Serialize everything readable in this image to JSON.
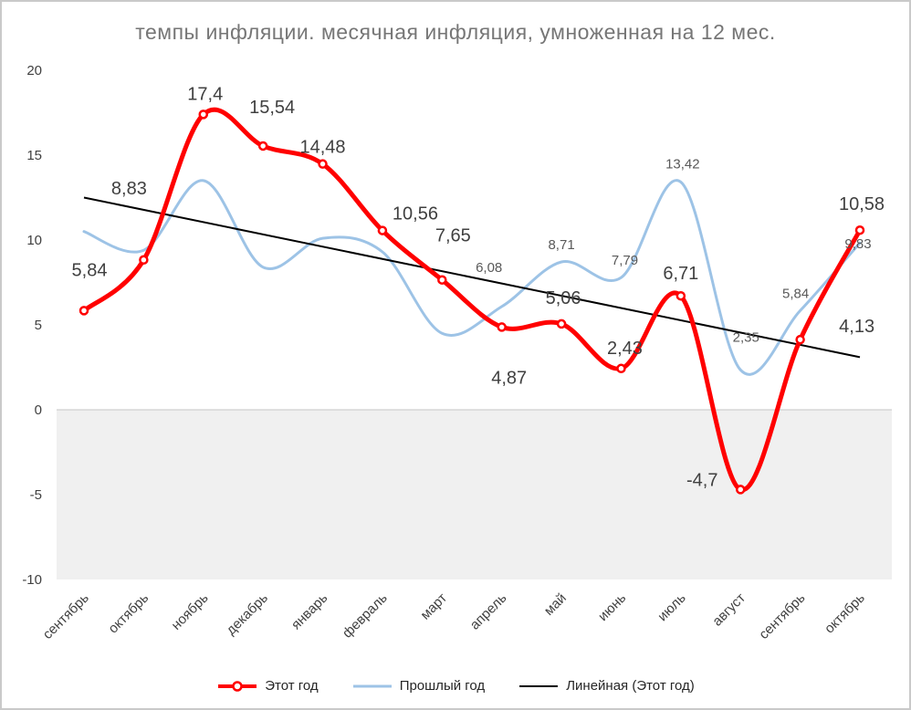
{
  "chart_data": {
    "type": "line",
    "title": "темпы инфляции. месячная инфляция, умноженная на 12 мес.",
    "categories": [
      "сентябрь",
      "октябрь",
      "ноябрь",
      "декабрь",
      "январь",
      "февраль",
      "март",
      "апрель",
      "май",
      "июнь",
      "июль",
      "август",
      "сентябрь",
      "октябрь"
    ],
    "series": [
      {
        "name": "Этот год",
        "color": "#ff0000",
        "line_width": 5,
        "marker": "open-circle",
        "values": [
          5.84,
          8.83,
          17.4,
          15.54,
          14.48,
          10.56,
          7.65,
          4.87,
          5.06,
          2.43,
          6.71,
          -4.7,
          4.13,
          10.58
        ],
        "labels": [
          "5,84",
          "8,83",
          "17,4",
          "15,54",
          "14,48",
          "10,56",
          "7,65",
          "4,87",
          "5,06",
          "2,43",
          "6,71",
          "-4,7",
          "4,13",
          "10,58"
        ],
        "label_color": "#404040",
        "label_size": 20,
        "label_offsets": [
          [
            6,
            -38
          ],
          [
            -16,
            -72
          ],
          [
            2,
            -16
          ],
          [
            10,
            -36
          ],
          [
            0,
            -12
          ],
          [
            36,
            -12
          ],
          [
            12,
            -42
          ],
          [
            8,
            62
          ],
          [
            2,
            -22
          ],
          [
            4,
            -16
          ],
          [
            0,
            -18
          ],
          [
            -42,
            -4
          ],
          [
            62,
            -8
          ],
          [
            2,
            -22
          ]
        ]
      },
      {
        "name": "Прошлый год",
        "color": "#9dc3e6",
        "line_width": 3,
        "marker": "none",
        "values": [
          10.5,
          9.4,
          13.5,
          8.4,
          10.1,
          9.3,
          4.5,
          6.08,
          8.71,
          7.79,
          13.42,
          2.35,
          5.84,
          9.83
        ],
        "labels": [
          "",
          "",
          "",
          "",
          "",
          "",
          "",
          "6,08",
          "8,71",
          "7,79",
          "13,42",
          "2,35",
          "5,84",
          "9,83"
        ],
        "label_color": "#595959",
        "label_size": 15,
        "label_offsets": [
          [
            0,
            0
          ],
          [
            0,
            0
          ],
          [
            0,
            0
          ],
          [
            0,
            0
          ],
          [
            0,
            0
          ],
          [
            0,
            0
          ],
          [
            0,
            0
          ],
          [
            -14,
            -38
          ],
          [
            0,
            -14
          ],
          [
            4,
            -14
          ],
          [
            2,
            -15
          ],
          [
            6,
            -31
          ],
          [
            -5,
            -14
          ],
          [
            -2,
            6
          ]
        ]
      }
    ],
    "trendline": {
      "name": "Линейная (Этот год)",
      "color": "#000000",
      "start": 12.5,
      "end": 3.1
    },
    "ylim": [
      -10,
      20
    ],
    "yticks": [
      20,
      15,
      10,
      5,
      0,
      -5,
      -10
    ],
    "grid": "zero-line-only",
    "legend_position": "bottom"
  }
}
